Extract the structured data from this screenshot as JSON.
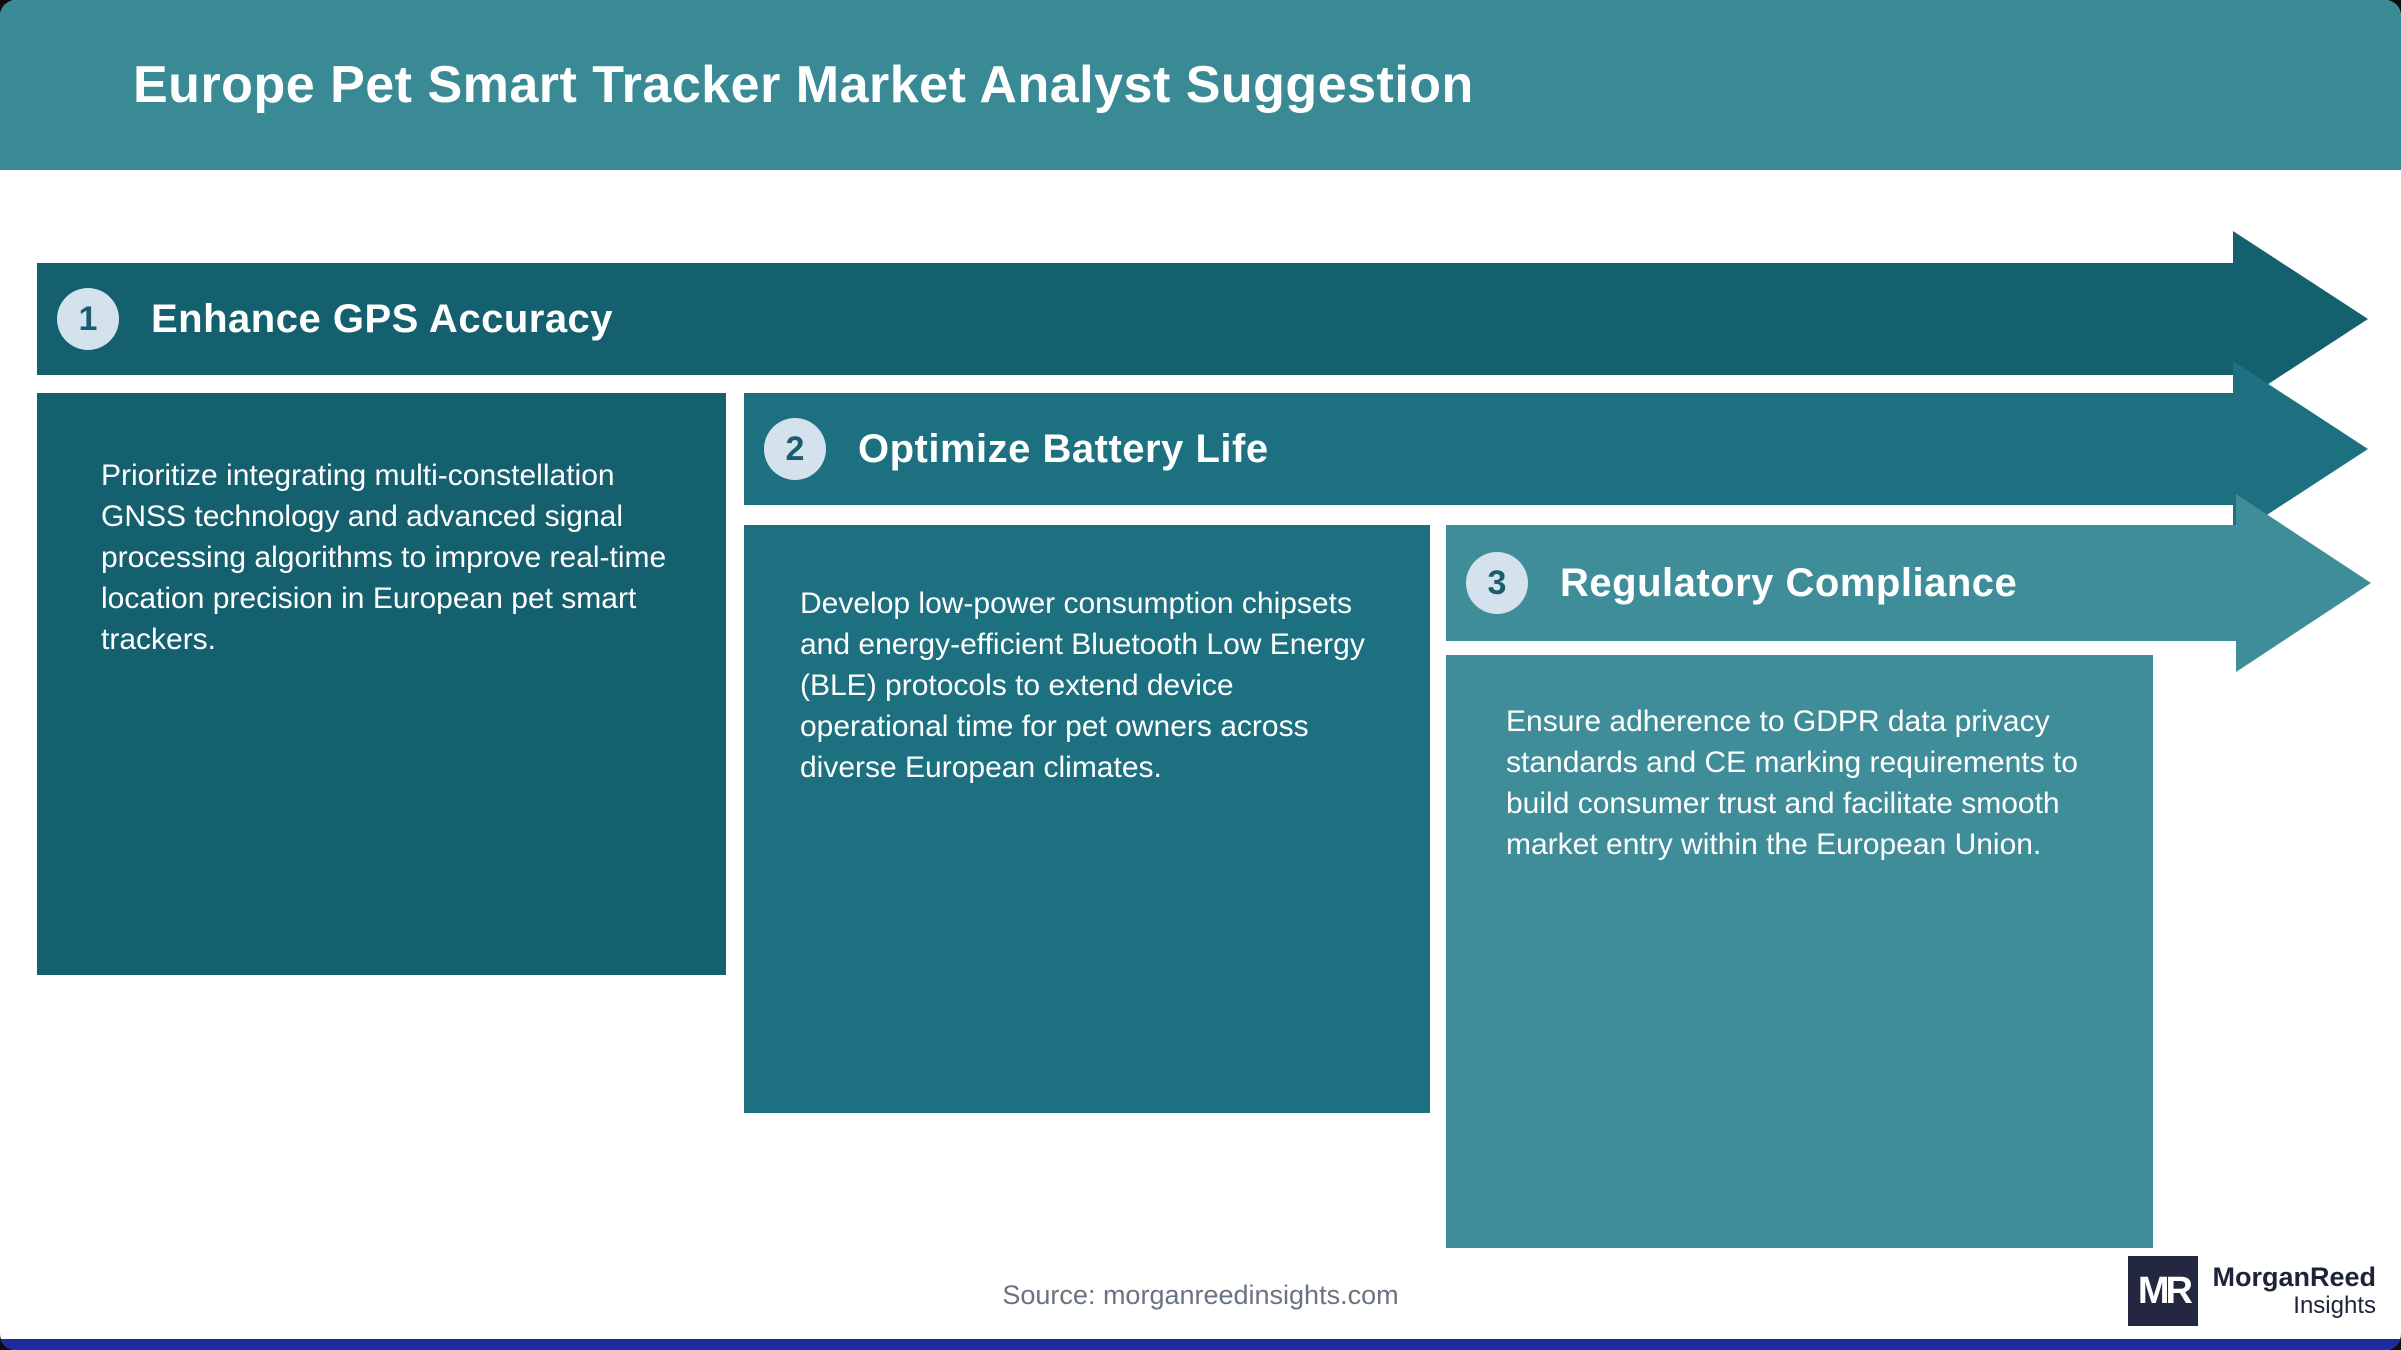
{
  "header": {
    "title": "Europe Pet Smart Tracker Market Analyst Suggestion"
  },
  "steps": [
    {
      "number": "1",
      "title": "Enhance GPS Accuracy",
      "description": "Prioritize integrating multi-constellation GNSS technology and advanced signal processing algorithms to improve real-time location precision in European pet smart trackers."
    },
    {
      "number": "2",
      "title": "Optimize Battery Life",
      "description": "Develop low-power consumption chipsets and energy-efficient Bluetooth Low Energy (BLE) protocols to extend device operational time for pet owners across diverse European climates."
    },
    {
      "number": "3",
      "title": "Regulatory Compliance",
      "description": "Ensure adherence to GDPR data privacy standards and CE marking requirements to build consumer trust and facilitate smooth market entry within the European Union."
    }
  ],
  "footer": {
    "source": "Source: morganreedinsights.com",
    "logo_monogram": "MR",
    "brand_name": "MorganReed",
    "brand_subtitle": "Insights"
  },
  "colors": {
    "header_band": "#3a8a96",
    "step1": "#15606f",
    "step2": "#1d7080",
    "step3": "#3f8d99",
    "number_badge_bg": "#d3e2ec",
    "number_badge_text": "#1b5d6e",
    "source_text": "#6a7480",
    "bottom_bar": "#1d2b9e",
    "brand_text": "#1d2438"
  }
}
